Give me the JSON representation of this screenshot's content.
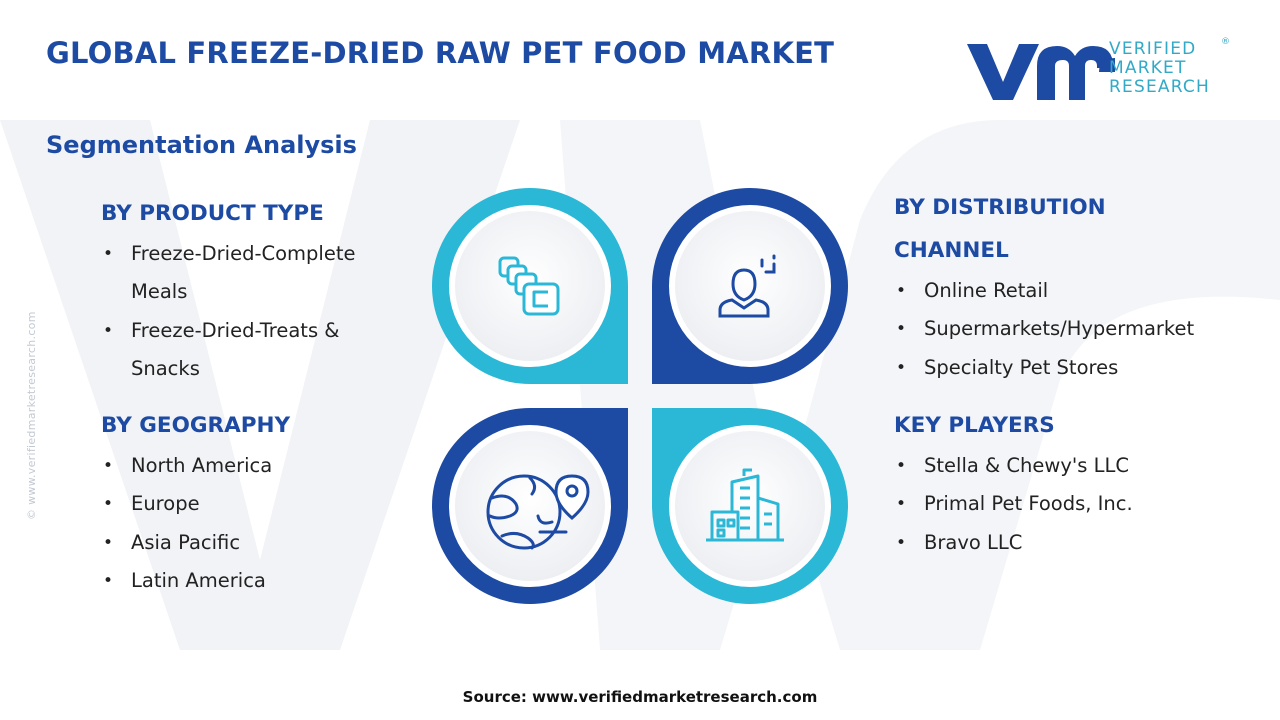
{
  "header": {
    "title": "GLOBAL FREEZE-DRIED RAW PET FOOD MARKET",
    "subtitle": "Segmentation Analysis"
  },
  "logo": {
    "line1": "VERIFIED",
    "line2": "MARKET",
    "line3": "RESEARCH",
    "registered": "®"
  },
  "segments": {
    "product_type": {
      "heading": "BY PRODUCT TYPE",
      "items": [
        "Freeze-Dried-Complete",
        "Meals",
        "Freeze-Dried-Treats &",
        "Snacks"
      ]
    },
    "geography": {
      "heading": "BY GEOGRAPHY",
      "items": [
        "North America",
        "Europe",
        "Asia Pacific",
        "Latin America"
      ]
    },
    "distribution": {
      "heading_line1": "BY DISTRIBUTION",
      "heading_line2": "CHANNEL",
      "items": [
        "Online Retail",
        "Supermarkets/Hypermarket",
        "Specialty Pet Stores"
      ]
    },
    "key_players": {
      "heading": "KEY PLAYERS",
      "items": [
        "Stella & Chewy's LLC",
        "Primal Pet Foods, Inc.",
        "Bravo LLC"
      ]
    }
  },
  "icons": {
    "top_left": "product-blocks-icon",
    "top_right": "person-screen-icon",
    "bottom_left": "globe-location-icon",
    "bottom_right": "buildings-icon"
  },
  "colors": {
    "dark_blue": "#1d4aa3",
    "cyan": "#2bb7d6",
    "light_gray": "#eef0f4"
  },
  "footer": {
    "source": "Source: www.verifiedmarketresearch.com",
    "side_url": "© www.verifiedmarketresearch.com"
  }
}
